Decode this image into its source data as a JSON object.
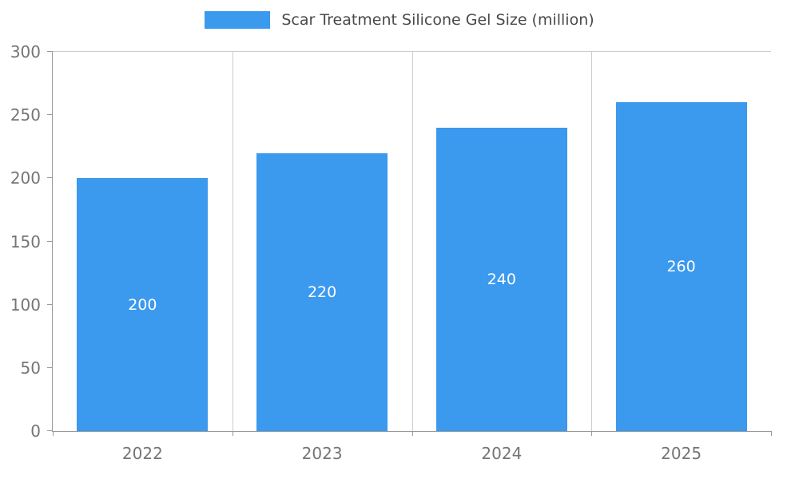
{
  "chart_data": {
    "type": "bar",
    "title": "Scar Treatment Silicone Gel Size (million)",
    "categories": [
      "2022",
      "2023",
      "2024",
      "2025"
    ],
    "values": [
      200,
      220,
      240,
      260
    ],
    "xlabel": "",
    "ylabel": "",
    "ylim": [
      0,
      300
    ],
    "yticks": [
      0,
      50,
      100,
      150,
      200,
      250,
      300
    ],
    "grid": "vertical-category-separators",
    "legend_position": "top-center",
    "bar_labels_inside": true,
    "colors": {
      "bar": "#3B99EE",
      "bar_label": "#FFFFFF",
      "axis_text": "#757575",
      "legend_text": "#4A4A4A",
      "grid_line": "#CCCCCC",
      "axis_line": "#999999"
    }
  }
}
